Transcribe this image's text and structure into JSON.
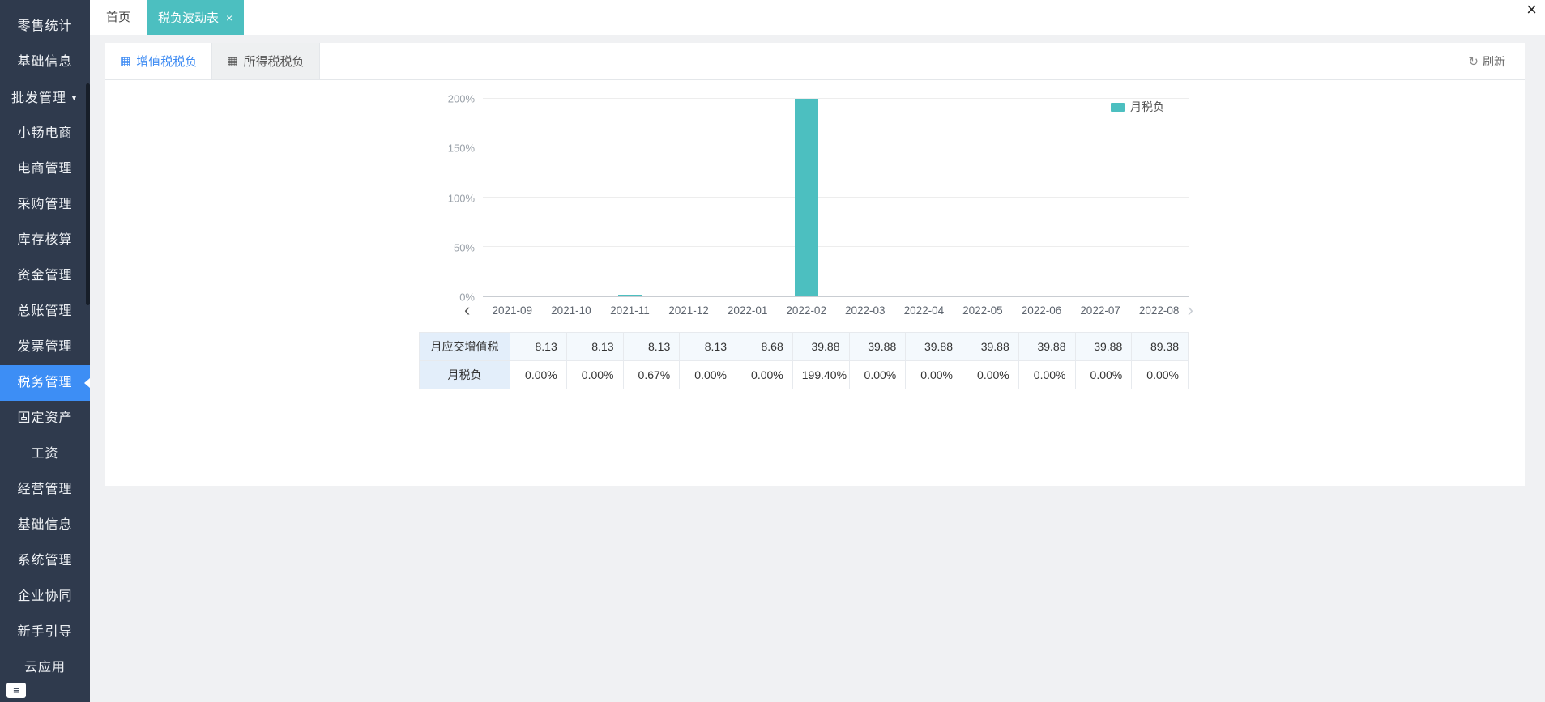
{
  "colors": {
    "sidebar_bg": "#2f3a4d",
    "sidebar_active_bg": "#3d8ef5",
    "accent_blue": "#3f8cf3",
    "teal": "#4cbfc0"
  },
  "icons": {
    "refresh": "↻",
    "close": "×",
    "dropdown_caret": "▼",
    "tab_sheet": "▦",
    "prev_arrow": "‹",
    "next_arrow": "›",
    "collapse": "≡"
  },
  "sidebar": {
    "items": [
      {
        "label": "零售统计",
        "active": false,
        "has_dropdown": false
      },
      {
        "label": "基础信息",
        "active": false,
        "has_dropdown": false
      },
      {
        "label": "批发管理",
        "active": false,
        "has_dropdown": true
      },
      {
        "label": "小畅电商",
        "active": false,
        "has_dropdown": false
      },
      {
        "label": "电商管理",
        "active": false,
        "has_dropdown": false
      },
      {
        "label": "采购管理",
        "active": false,
        "has_dropdown": false
      },
      {
        "label": "库存核算",
        "active": false,
        "has_dropdown": false
      },
      {
        "label": "资金管理",
        "active": false,
        "has_dropdown": false
      },
      {
        "label": "总账管理",
        "active": false,
        "has_dropdown": false
      },
      {
        "label": "发票管理",
        "active": false,
        "has_dropdown": false
      },
      {
        "label": "税务管理",
        "active": true,
        "has_dropdown": false
      },
      {
        "label": "固定资产",
        "active": false,
        "has_dropdown": false
      },
      {
        "label": "工资",
        "active": false,
        "has_dropdown": false
      },
      {
        "label": "经营管理",
        "active": false,
        "has_dropdown": false
      },
      {
        "label": "基础信息",
        "active": false,
        "has_dropdown": false
      },
      {
        "label": "系统管理",
        "active": false,
        "has_dropdown": false
      },
      {
        "label": "企业协同",
        "active": false,
        "has_dropdown": false
      },
      {
        "label": "新手引导",
        "active": false,
        "has_dropdown": false
      },
      {
        "label": "云应用",
        "active": false,
        "has_dropdown": false
      }
    ]
  },
  "tabbar": {
    "home_tab": "首页",
    "active_tab": {
      "label": "税负波动表"
    }
  },
  "content": {
    "tabs": [
      {
        "label": "增值税税负",
        "active": true
      },
      {
        "label": "所得税税负",
        "active": false
      }
    ],
    "refresh_label": "刷新"
  },
  "chart_data": {
    "type": "bar",
    "title": "",
    "categories": [
      "2021-09",
      "2021-10",
      "2021-11",
      "2021-12",
      "2022-01",
      "2022-02",
      "2022-03",
      "2022-04",
      "2022-05",
      "2022-06",
      "2022-07",
      "2022-08"
    ],
    "series": [
      {
        "name": "月税负",
        "values": [
          0.0,
          0.0,
          0.67,
          0.0,
          0.0,
          199.4,
          0.0,
          0.0,
          0.0,
          0.0,
          0.0,
          0.0
        ],
        "color": "#4cbfc0"
      }
    ],
    "y_ticks": [
      "0%",
      "50%",
      "100%",
      "150%",
      "200%"
    ],
    "ylim": [
      0,
      200
    ],
    "grid": true,
    "legend_position": "top-right"
  },
  "table": {
    "row_headers": [
      "月应交增值税",
      "月税负"
    ],
    "rows": [
      [
        "8.13",
        "8.13",
        "8.13",
        "8.13",
        "8.68",
        "39.88",
        "39.88",
        "39.88",
        "39.88",
        "39.88",
        "39.88",
        "89.38"
      ],
      [
        "0.00%",
        "0.00%",
        "0.67%",
        "0.00%",
        "0.00%",
        "199.40%",
        "0.00%",
        "0.00%",
        "0.00%",
        "0.00%",
        "0.00%",
        "0.00%"
      ]
    ]
  }
}
